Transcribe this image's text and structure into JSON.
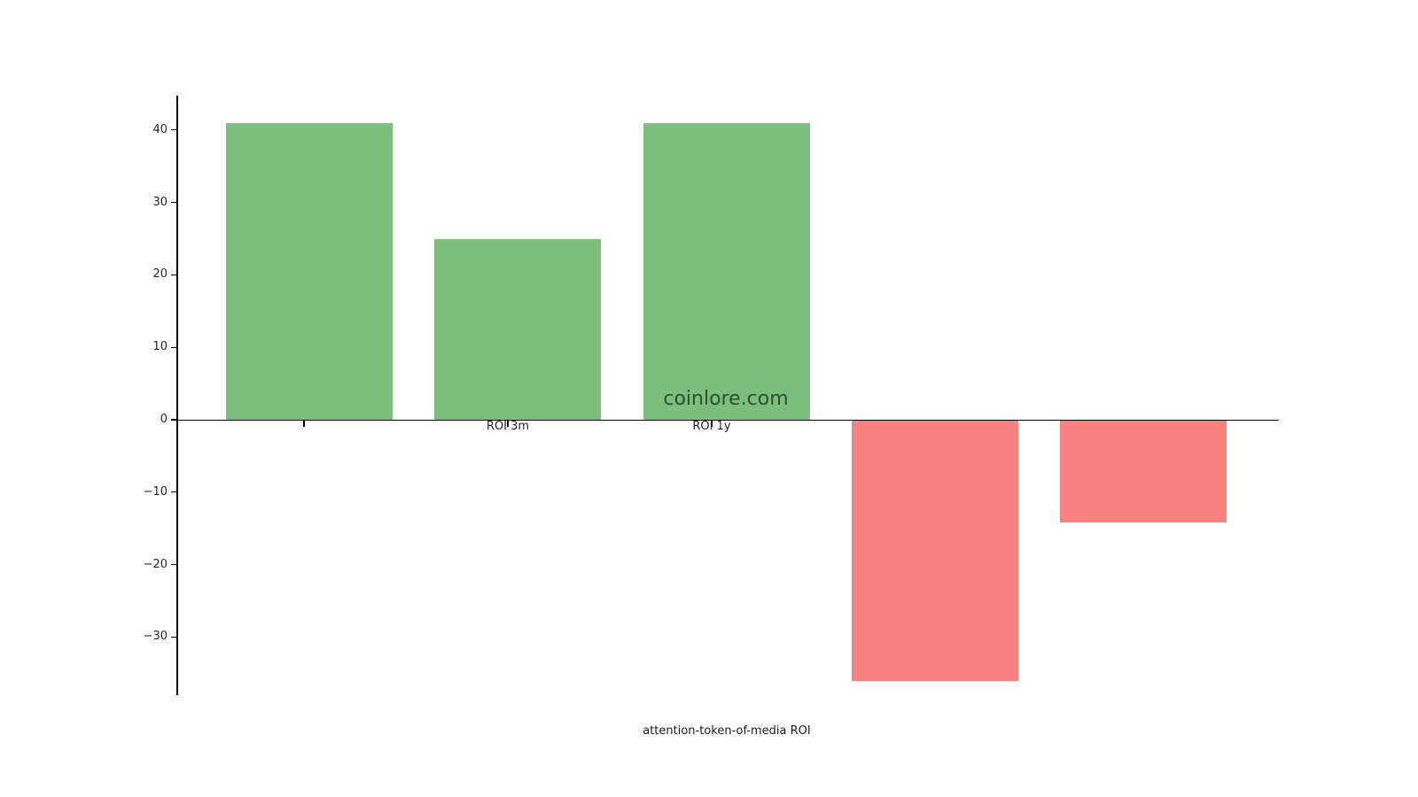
{
  "page": {
    "background_color": "#ffffff"
  },
  "watermark": {
    "text": "coinlore.com"
  },
  "chart_data": {
    "type": "bar",
    "title": "attention-token-of-media ROI",
    "categories": [
      "",
      "ROI 3m",
      "ROI 1y",
      "",
      ""
    ],
    "values": [
      41,
      25,
      41,
      -36,
      -14
    ],
    "x_tick_labels": [
      "",
      "ROI 3m",
      "ROI 1y"
    ],
    "y_tick_values": [
      40,
      30,
      20,
      10,
      0,
      -10,
      -20,
      -30
    ],
    "y_tick_labels": [
      "40",
      "30",
      "20",
      "10",
      "0",
      "−10",
      "−20",
      "−30"
    ],
    "ylim": [
      -38,
      45
    ],
    "xlabel": "",
    "ylabel": "",
    "grid": false,
    "legend": false,
    "positive_color": "#7CBE7C",
    "negative_color": "#FA8181",
    "axis_color": "#000000",
    "tick_text_color": "#262626"
  }
}
